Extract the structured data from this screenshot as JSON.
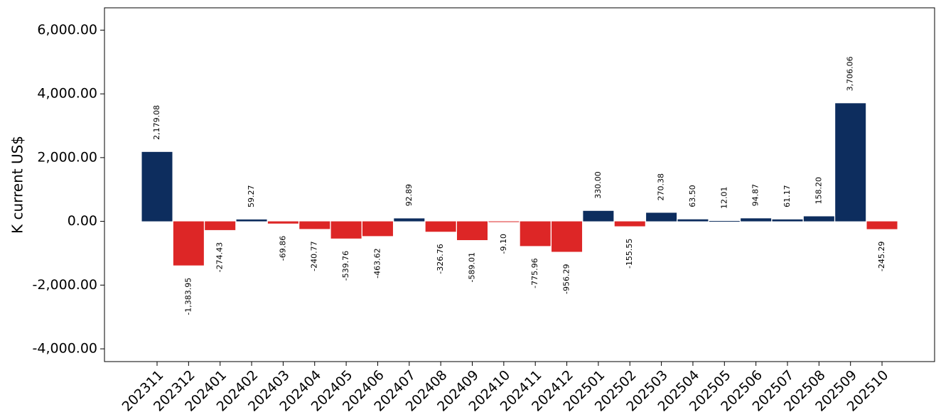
{
  "chart_data": {
    "type": "bar",
    "title": "",
    "xlabel": "",
    "ylabel": "K current US$",
    "ylim": [
      -4400,
      6700
    ],
    "yticks": [
      -4000,
      -2000,
      0,
      2000,
      4000,
      6000
    ],
    "ytick_labels": [
      "-4,000.00",
      "-2,000.00",
      "0.00",
      "2,000.00",
      "4,000.00",
      "6,000.00"
    ],
    "grid": false,
    "legend": "none",
    "colors": {
      "positive": "#0d2d5e",
      "negative": "#dd2626"
    },
    "categories": [
      "202311",
      "202312",
      "202401",
      "202402",
      "202403",
      "202404",
      "202405",
      "202406",
      "202407",
      "202408",
      "202409",
      "202410",
      "202411",
      "202412",
      "202501",
      "202502",
      "202503",
      "202504",
      "202505",
      "202506",
      "202507",
      "202508",
      "202509",
      "202510"
    ],
    "values": [
      2179.08,
      -1383.95,
      -274.43,
      59.27,
      -69.86,
      -240.77,
      -539.76,
      -463.62,
      92.89,
      -326.76,
      -589.01,
      -9.1,
      -775.96,
      -956.29,
      330.0,
      -155.55,
      270.38,
      63.5,
      12.01,
      94.87,
      61.17,
      158.2,
      3706.06,
      -245.29
    ],
    "value_labels": [
      "2,179.08",
      "-1,383.95",
      "-274.43",
      "59.27",
      "-69.86",
      "-240.77",
      "-539.76",
      "-463.62",
      "92.89",
      "-326.76",
      "-589.01",
      "-9.10",
      "-775.96",
      "-956.29",
      "330.00",
      "-155.55",
      "270.38",
      "63.50",
      "12.01",
      "94.87",
      "61.17",
      "158.20",
      "3,706.06",
      "-245.29"
    ]
  }
}
